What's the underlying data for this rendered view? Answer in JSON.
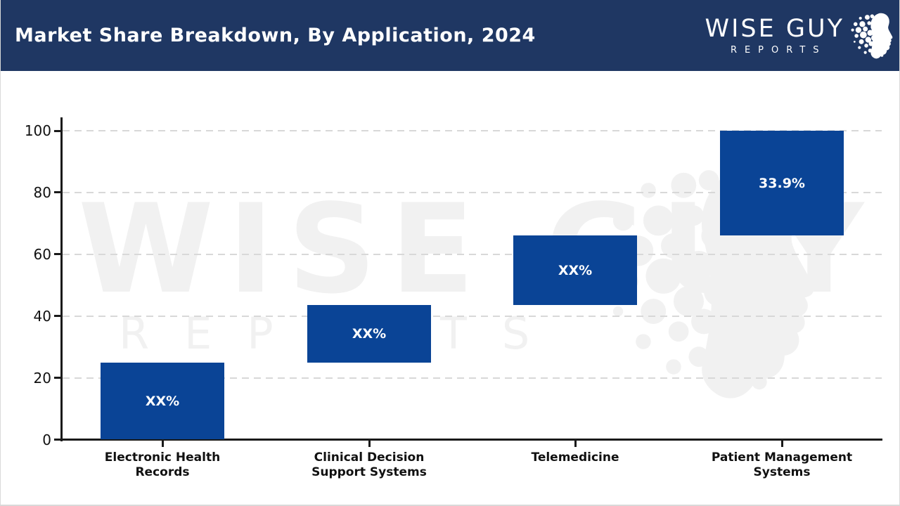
{
  "header": {
    "title": "Market Share Breakdown, By Application, 2024",
    "logo": {
      "brand": "WISE GUY",
      "sub": "REPORTS"
    }
  },
  "watermark": {
    "brand": "WISE GUY",
    "sub": "REPORTS"
  },
  "colors": {
    "header_bg": "#1f3763",
    "bar": "#0a4496",
    "bar_label": "#ffffff",
    "watermark": "#f1f1f1",
    "grid": "#d8d8d8",
    "axis": "#1a1a1a"
  },
  "chart_data": {
    "type": "bar",
    "subtype": "waterfall",
    "title": "Market Share Breakdown, By Application, 2024",
    "xlabel": "",
    "ylabel": "",
    "ylim": [
      0,
      105
    ],
    "yticks": [
      0,
      20,
      40,
      60,
      80,
      100
    ],
    "grid": {
      "horizontal": true,
      "style": "dashed"
    },
    "legend": "none",
    "categories": [
      "Electronic Health Records",
      "Clinical Decision Support Systems",
      "Telemedicine",
      "Patient Management Systems"
    ],
    "category_lines": [
      [
        "Electronic Health",
        "Records"
      ],
      [
        "Clinical Decision",
        "Support Systems"
      ],
      [
        "Telemedicine"
      ],
      [
        "Patient Management",
        "Systems"
      ]
    ],
    "segments": [
      {
        "category": "Electronic Health Records",
        "start": 0,
        "end": 25.0,
        "value": 25.0,
        "label": "XX%"
      },
      {
        "category": "Clinical Decision Support Systems",
        "start": 25.0,
        "end": 43.5,
        "value": 18.5,
        "label": "XX%"
      },
      {
        "category": "Telemedicine",
        "start": 43.5,
        "end": 66.1,
        "value": 22.6,
        "label": "XX%"
      },
      {
        "category": "Patient Management Systems",
        "start": 66.1,
        "end": 100.0,
        "value": 33.9,
        "label": "33.9%"
      }
    ]
  }
}
